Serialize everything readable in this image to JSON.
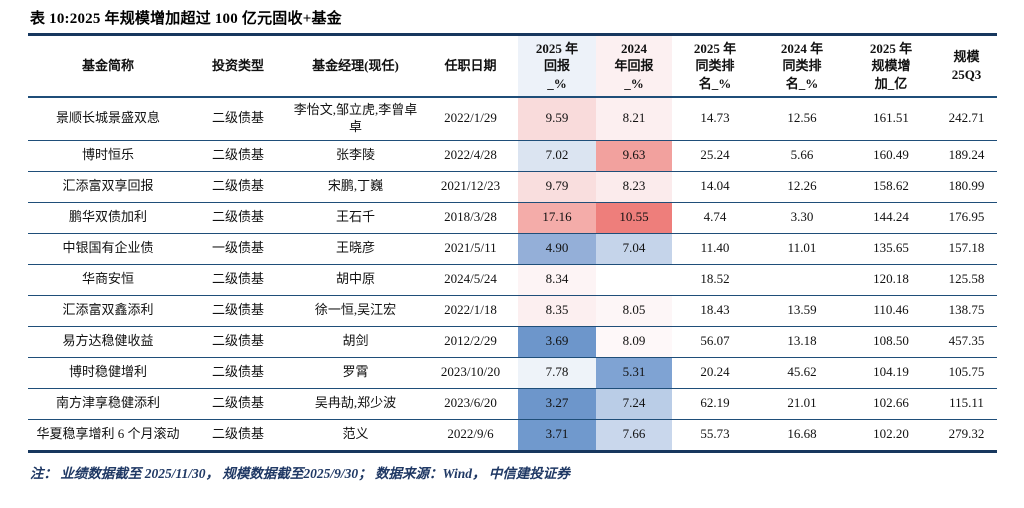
{
  "title": "表 10:2025 年规模增加超过 100 亿元固收+基金",
  "note": "注：  业绩数据截至 2025/11/30，  规模数据截至2025/9/30；  数据来源：Wind，  中信建投证券",
  "colors": {
    "rule_dark": "#17375E",
    "rule_mid": "#1F4E79",
    "note_text": "#1F3864",
    "heat_red_strong": "#EE7E7B",
    "heat_blue_strong": "#6D96CB"
  },
  "table": {
    "headers": [
      {
        "label": "基金简称"
      },
      {
        "label": "投资类型"
      },
      {
        "label": "基金经理(现任)"
      },
      {
        "label": "任职日期"
      },
      {
        "label": "2025 年\n回报\n_%",
        "bg": "#EDF2F9"
      },
      {
        "label": "2024\n年回报\n_%",
        "bg": "#FCF0F1"
      },
      {
        "label": "2025 年\n同类排\n名_%"
      },
      {
        "label": "2024 年\n同类排\n名_%"
      },
      {
        "label": "2025 年\n规模增\n加_亿"
      },
      {
        "label": "规模\n25Q3"
      }
    ],
    "rows": [
      {
        "name": "景顺长城景盛双息",
        "type": "二级债基",
        "manager": "李怡文,邹立虎,李曾卓卓",
        "date": "2022/1/29",
        "ret2025": "9.59",
        "ret2025_bg": "#F9DBDB",
        "ret2024": "8.21",
        "ret2024_bg": "#FCEFF0",
        "rank2025": "14.73",
        "rank2024": "12.56",
        "scale_inc": "161.51",
        "scale_q3": "242.71"
      },
      {
        "name": "博时恒乐",
        "type": "二级债基",
        "manager": "张李陵",
        "date": "2022/4/28",
        "ret2025": "7.02",
        "ret2025_bg": "#DBE4F1",
        "ret2024": "9.63",
        "ret2024_bg": "#F2A19E",
        "rank2025": "25.24",
        "rank2024": "5.66",
        "scale_inc": "160.49",
        "scale_q3": "189.24"
      },
      {
        "name": "汇添富双享回报",
        "type": "二级债基",
        "manager": "宋鹏,丁巍",
        "date": "2021/12/23",
        "ret2025": "9.79",
        "ret2025_bg": "#F9DEDE",
        "ret2024": "8.23",
        "ret2024_bg": "#FBEBEC",
        "rank2025": "14.04",
        "rank2024": "12.26",
        "scale_inc": "158.62",
        "scale_q3": "180.99"
      },
      {
        "name": "鹏华双债加利",
        "type": "二级债基",
        "manager": "王石千",
        "date": "2018/3/28",
        "ret2025": "17.16",
        "ret2025_bg": "#F4ACA9",
        "ret2024": "10.55",
        "ret2024_bg": "#EE7E7B",
        "rank2025": "4.74",
        "rank2024": "3.30",
        "scale_inc": "144.24",
        "scale_q3": "176.95"
      },
      {
        "name": "中银国有企业债",
        "type": "一级债基",
        "manager": "王晓彦",
        "date": "2021/5/11",
        "ret2025": "4.90",
        "ret2025_bg": "#94AFD8",
        "ret2024": "7.04",
        "ret2024_bg": "#C5D4EA",
        "rank2025": "11.40",
        "rank2024": "11.01",
        "scale_inc": "135.65",
        "scale_q3": "157.18"
      },
      {
        "name": "华商安恒",
        "type": "二级债基",
        "manager": "胡中原",
        "date": "2024/5/24",
        "ret2025": "8.34",
        "ret2025_bg": "#FDF4F5",
        "ret2024": "",
        "rank2025": "18.52",
        "rank2024": "",
        "scale_inc": "120.18",
        "scale_q3": "125.58"
      },
      {
        "name": "汇添富双鑫添利",
        "type": "二级债基",
        "manager": "徐一恒,吴江宏",
        "date": "2022/1/18",
        "ret2025": "8.35",
        "ret2025_bg": "#FCEFF0",
        "ret2024": "8.05",
        "ret2024_bg": "#FDF6F7",
        "rank2025": "18.43",
        "rank2024": "13.59",
        "scale_inc": "110.46",
        "scale_q3": "138.75"
      },
      {
        "name": "易方达稳健收益",
        "type": "二级债基",
        "manager": "胡剑",
        "date": "2012/2/29",
        "ret2025": "3.69",
        "ret2025_bg": "#6D96CB",
        "ret2024": "8.09",
        "ret2024_bg": "#FEF8F9",
        "rank2025": "56.07",
        "rank2024": "13.18",
        "scale_inc": "108.50",
        "scale_q3": "457.35"
      },
      {
        "name": "博时稳健增利",
        "type": "二级债基",
        "manager": "罗霄",
        "date": "2023/10/20",
        "ret2025": "7.78",
        "ret2025_bg": "#EEF3F9",
        "ret2024": "5.31",
        "ret2024_bg": "#7FA3D3",
        "rank2025": "20.24",
        "rank2024": "45.62",
        "scale_inc": "104.19",
        "scale_q3": "105.75"
      },
      {
        "name": "南方津享稳健添利",
        "type": "二级债基",
        "manager": "吴冉劼,郑少波",
        "date": "2023/6/20",
        "ret2025": "3.27",
        "ret2025_bg": "#6D96CB",
        "ret2024": "7.24",
        "ret2024_bg": "#BACDE7",
        "rank2025": "62.19",
        "rank2024": "21.01",
        "scale_inc": "102.66",
        "scale_q3": "115.11"
      },
      {
        "name": "华夏稳享增利 6 个月滚动",
        "type": "二级债基",
        "manager": "范义",
        "date": "2022/9/6",
        "ret2025": "3.71",
        "ret2025_bg": "#7099CD",
        "ret2024": "7.66",
        "ret2024_bg": "#C9D7EC",
        "rank2025": "55.73",
        "rank2024": "16.68",
        "scale_inc": "102.20",
        "scale_q3": "279.32"
      }
    ]
  }
}
